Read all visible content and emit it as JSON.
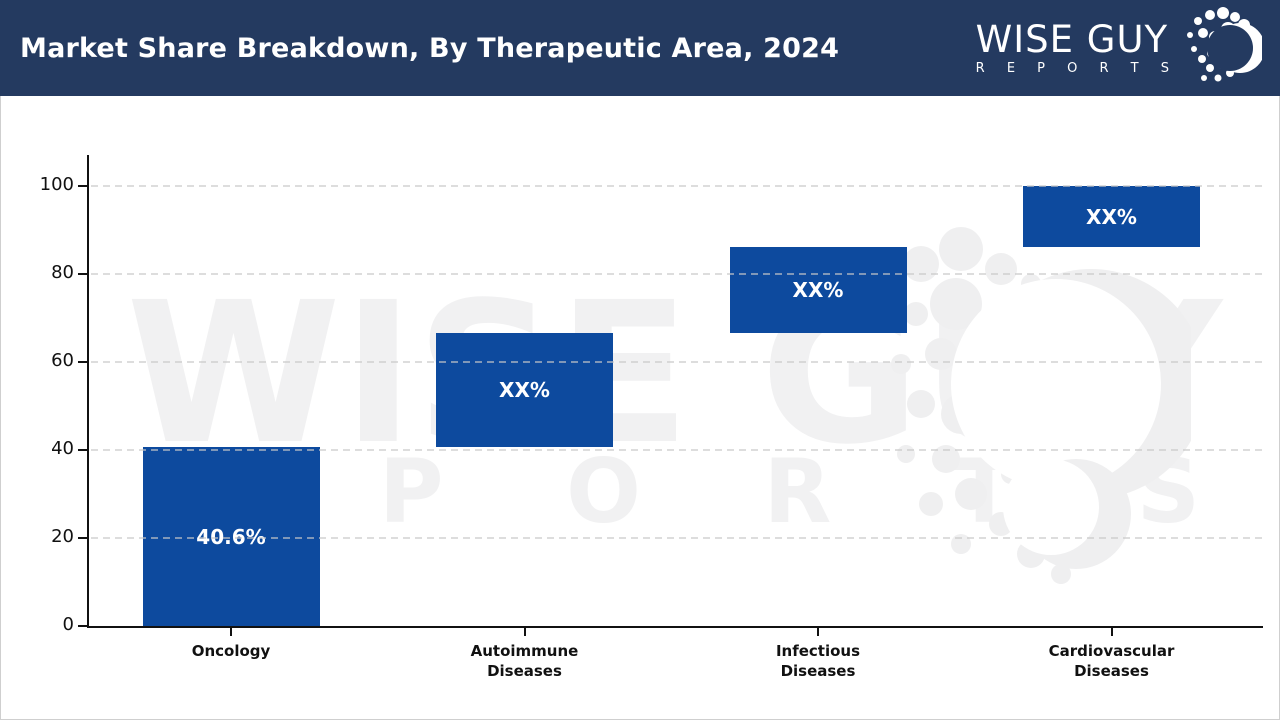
{
  "header": {
    "title": "Market Share Breakdown, By Therapeutic Area, 2024",
    "background": "#243a60",
    "logo": {
      "line1": "WISE GUY",
      "line2": "R E P O R T S"
    }
  },
  "watermark": {
    "line1": "WISE GUY",
    "line2": "P O R T S"
  },
  "chart_data": {
    "type": "bar",
    "variant": "waterfall",
    "title": "Market Share Breakdown, By Therapeutic Area, 2024",
    "categories": [
      "Oncology",
      "Autoimmune Diseases",
      "Infectious Diseases",
      "Cardiovascular Diseases"
    ],
    "category_label_lines": [
      [
        "Oncology"
      ],
      [
        "Autoimmune",
        "Diseases"
      ],
      [
        "Infectious",
        "Diseases"
      ],
      [
        "Cardiovascular",
        "Diseases"
      ]
    ],
    "segments": [
      {
        "category": "Oncology",
        "start": 0,
        "end": 40.6,
        "label": "40.6%"
      },
      {
        "category": "Autoimmune Diseases",
        "start": 40.6,
        "end": 66.5,
        "label": "XX%"
      },
      {
        "category": "Infectious Diseases",
        "start": 66.5,
        "end": 86.1,
        "label": "XX%"
      },
      {
        "category": "Cardiovascular Diseases",
        "start": 86.1,
        "end": 100,
        "label": "XX%"
      }
    ],
    "xlabel": "",
    "ylabel": "",
    "ylim": [
      0,
      100
    ],
    "yticks": [
      0,
      20,
      40,
      60,
      80,
      100
    ],
    "grid": "horizontal-dashed",
    "legend": "none",
    "bar_color": "#0d4a9e",
    "value_label_color": "#ffffff",
    "axis_color": "#111111"
  }
}
